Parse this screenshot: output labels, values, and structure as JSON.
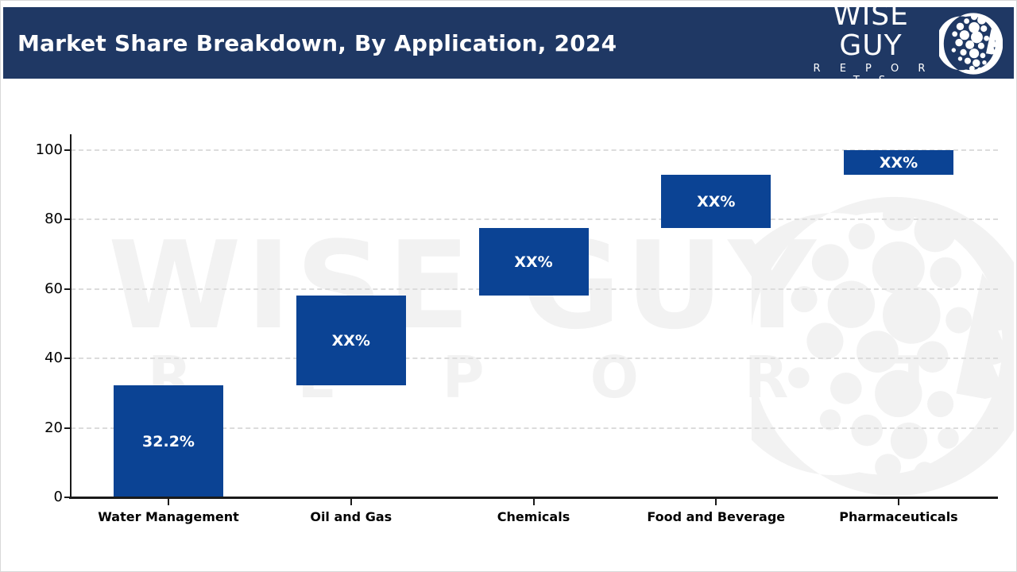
{
  "header": {
    "title": "Market Share Breakdown, By Application, 2024",
    "bg_color": "#1f3864",
    "logo": {
      "line1": "WISE GUY",
      "line2": "R E P O R T S"
    }
  },
  "watermark": {
    "line1": "WISE GUY",
    "line2": "R E P O R T S",
    "color": "#f2f2f2"
  },
  "chart_data": {
    "type": "bar",
    "subtype": "waterfall",
    "title": "Market Share Breakdown, By Application, 2024",
    "categories": [
      "Water Management",
      "Oil and Gas",
      "Chemicals",
      "Food and Beverage",
      "Pharmaceuticals"
    ],
    "segments": [
      {
        "category": "Water Management",
        "start": 0,
        "end": 32.2,
        "label": "32.2%"
      },
      {
        "category": "Oil and Gas",
        "start": 32.2,
        "end": 58.1,
        "label": "XX%"
      },
      {
        "category": "Chemicals",
        "start": 58.1,
        "end": 77.5,
        "label": "XX%"
      },
      {
        "category": "Food and Beverage",
        "start": 77.5,
        "end": 92.8,
        "label": "XX%"
      },
      {
        "category": "Pharmaceuticals",
        "start": 92.8,
        "end": 100,
        "label": "XX%"
      }
    ],
    "xlabel": "",
    "ylabel": "",
    "ylim": [
      0,
      100
    ],
    "yticks": [
      0,
      20,
      40,
      60,
      80,
      100
    ],
    "grid": "horizontal-dashed",
    "legend": "none",
    "bar_color": "#0b4394",
    "bar_label_color": "#ffffff",
    "grid_color": "#dcdcdc",
    "axis_color": "#1a1a1a"
  }
}
